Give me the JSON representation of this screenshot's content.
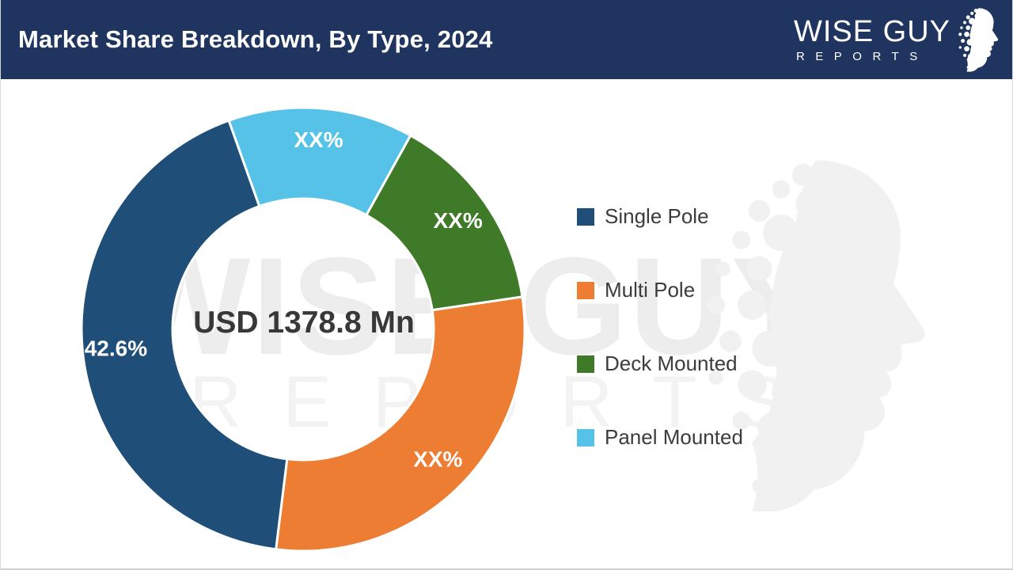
{
  "header": {
    "title": "Market Share Breakdown, By Type, 2024",
    "logo": {
      "name": "WISE GUY",
      "tagline": "REPORTS"
    }
  },
  "watermark": {
    "line1": "WISE GUY",
    "line2": "REPORTS"
  },
  "chart_data": {
    "type": "pie",
    "subtype": "donut",
    "title": "Market Share Breakdown, By Type, 2024",
    "center_label": "USD 1378.8 Mn",
    "total_value_usd_mn": 1378.8,
    "segments": [
      {
        "name": "Single Pole",
        "display_label": "42.6%",
        "value_pct": 42.6,
        "color": "#1F4E78"
      },
      {
        "name": "Multi Pole",
        "display_label": "XX%",
        "value_pct": 29.3,
        "color": "#EC7D33"
      },
      {
        "name": "Deck Mounted",
        "display_label": "XX%",
        "value_pct": 14.6,
        "color": "#3E7A28"
      },
      {
        "name": "Panel Mounted",
        "display_label": "XX%",
        "value_pct": 13.5,
        "color": "#56C2E8"
      }
    ],
    "layout": {
      "hole": 0.59,
      "rotation_deg": -19.6,
      "direction": "clockwise",
      "draw_order": [
        "Panel Mounted",
        "Deck Mounted",
        "Multi Pole",
        "Single Pole"
      ],
      "legend_position": "right",
      "xx_values_estimated_from_arc_angles": true
    },
    "colors": {
      "header_bar": "#1F345E",
      "slice_label_text": "#FFFFFF",
      "center_text": "#383838",
      "legend_text": "#3C3C3C"
    }
  }
}
